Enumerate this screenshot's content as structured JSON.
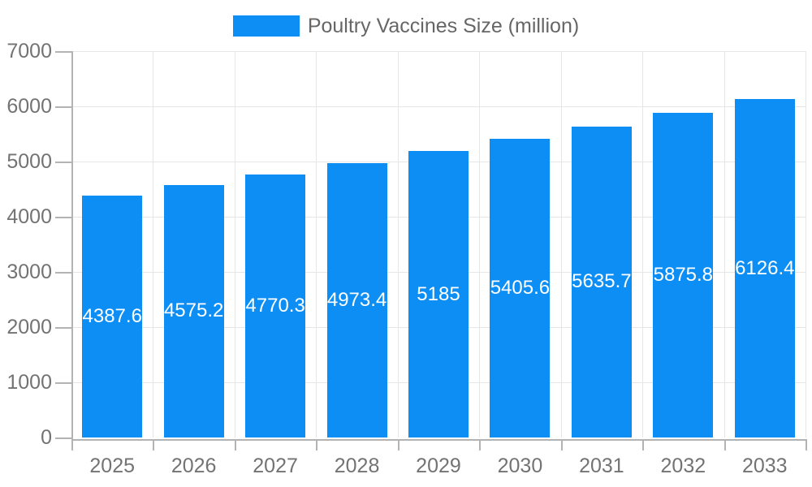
{
  "legend": {
    "label": "Poultry Vaccines Size (million)"
  },
  "colors": {
    "bar": "#0d8ef5",
    "legend_text": "#666666",
    "tick_text": "#737373",
    "grid": "#e6e6e6",
    "axis": "#b3b3b3",
    "value_label": "#ffffff",
    "background": "#ffffff"
  },
  "chart_data": {
    "type": "bar",
    "title": "Poultry Vaccines Size (million)",
    "categories": [
      "2025",
      "2026",
      "2027",
      "2028",
      "2029",
      "2030",
      "2031",
      "2032",
      "2033"
    ],
    "values": [
      4387.6,
      4575.2,
      4770.3,
      4973.4,
      5185,
      5405.6,
      5635.7,
      5875.8,
      6126.4
    ],
    "value_labels": [
      "4387.6",
      "4575.2",
      "4770.3",
      "4973.4",
      "5185",
      "5405.6",
      "5635.7",
      "5875.8",
      "6126.4"
    ],
    "series_name": "Poultry Vaccines Size (million)",
    "xlabel": "",
    "ylabel": "",
    "ylim": [
      0,
      7000
    ],
    "ytick_step": 1000,
    "yticks": [
      0,
      1000,
      2000,
      3000,
      4000,
      5000,
      6000,
      7000
    ],
    "grid": true,
    "legend_position": "top",
    "value_labels_position": "inside-center"
  }
}
